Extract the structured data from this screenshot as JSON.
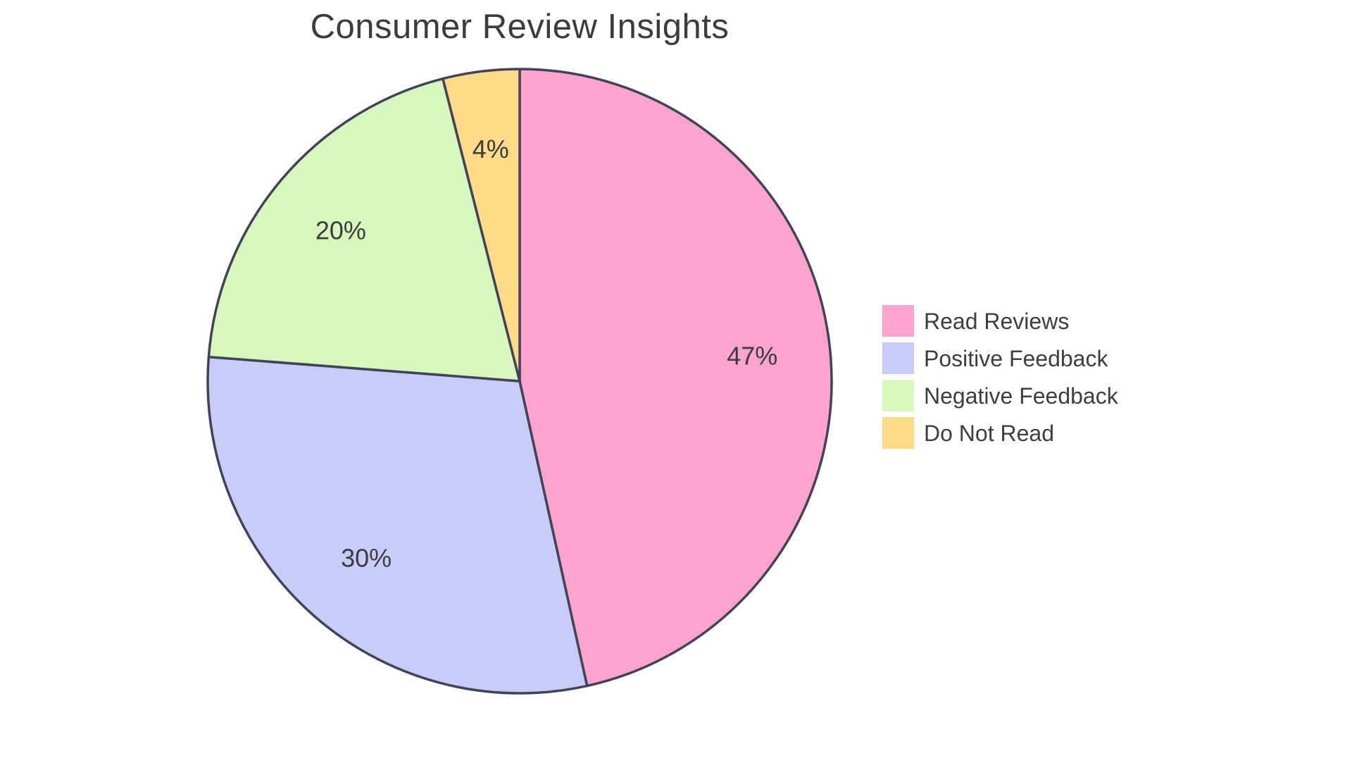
{
  "chart_data": {
    "type": "pie",
    "title": "Consumer Review Insights",
    "categories": [
      "Read Reviews",
      "Positive Feedback",
      "Negative Feedback",
      "Do Not Read"
    ],
    "values": [
      47,
      30,
      20,
      4
    ],
    "value_unit": "percent",
    "slice_text": [
      "47%",
      "30%",
      "20%",
      "4%"
    ],
    "colors": [
      "#FCA3CE",
      "#C8CCF8",
      "#D8F7BE",
      "#FDDB88"
    ],
    "slice_border_color": "#424259",
    "label_text_color": "#3c3c3c",
    "background_color": "#FFFFFF",
    "start_angle": "12-oclock",
    "direction": "clockwise",
    "legend_position": "right",
    "legend": {
      "entries": [
        {
          "label": "Read Reviews",
          "color": "#FCA3CE"
        },
        {
          "label": "Positive Feedback",
          "color": "#C8CCF8"
        },
        {
          "label": "Negative Feedback",
          "color": "#D8F7BE"
        },
        {
          "label": "Do Not Read",
          "color": "#FDDB88"
        }
      ]
    }
  }
}
